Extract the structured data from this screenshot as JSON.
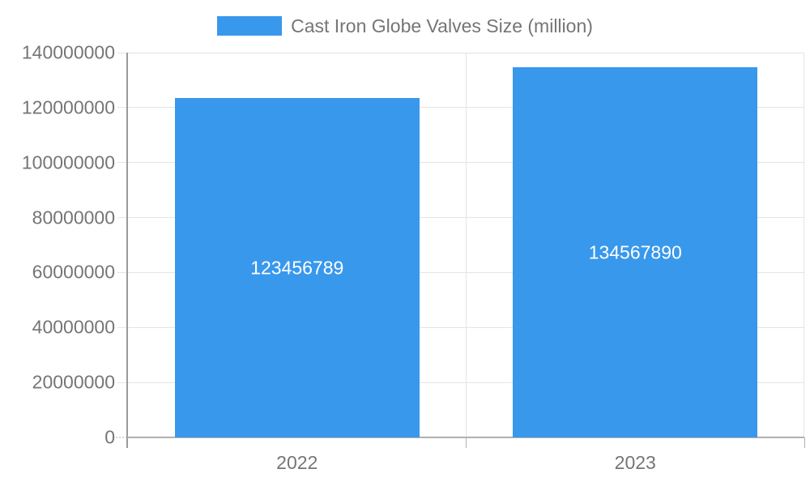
{
  "chart_data": {
    "type": "bar",
    "title": "Cast Iron Globe Valves Size (million)",
    "categories": [
      "2022",
      "2023"
    ],
    "series": [
      {
        "name": "Cast Iron Globe Valves Size (million)",
        "values": [
          123456789,
          134567890
        ],
        "color": "#3898ec"
      }
    ],
    "value_labels": [
      "123456789",
      "134567890"
    ],
    "y_ticks": [
      "0",
      "20000000",
      "40000000",
      "60000000",
      "80000000",
      "100000000",
      "120000000",
      "140000000"
    ],
    "ylim": [
      0,
      140000000
    ],
    "y_step": 20000000,
    "xlabel": "",
    "ylabel": "",
    "legend_position": "top",
    "grid": true,
    "colors": {
      "bar": "#3898ec",
      "label_text": "#757575",
      "value_text": "#ffffff",
      "grid": "#e4e4e4",
      "y_axis": "#9a9a9a",
      "x_axis": "#b1b1b1"
    }
  }
}
